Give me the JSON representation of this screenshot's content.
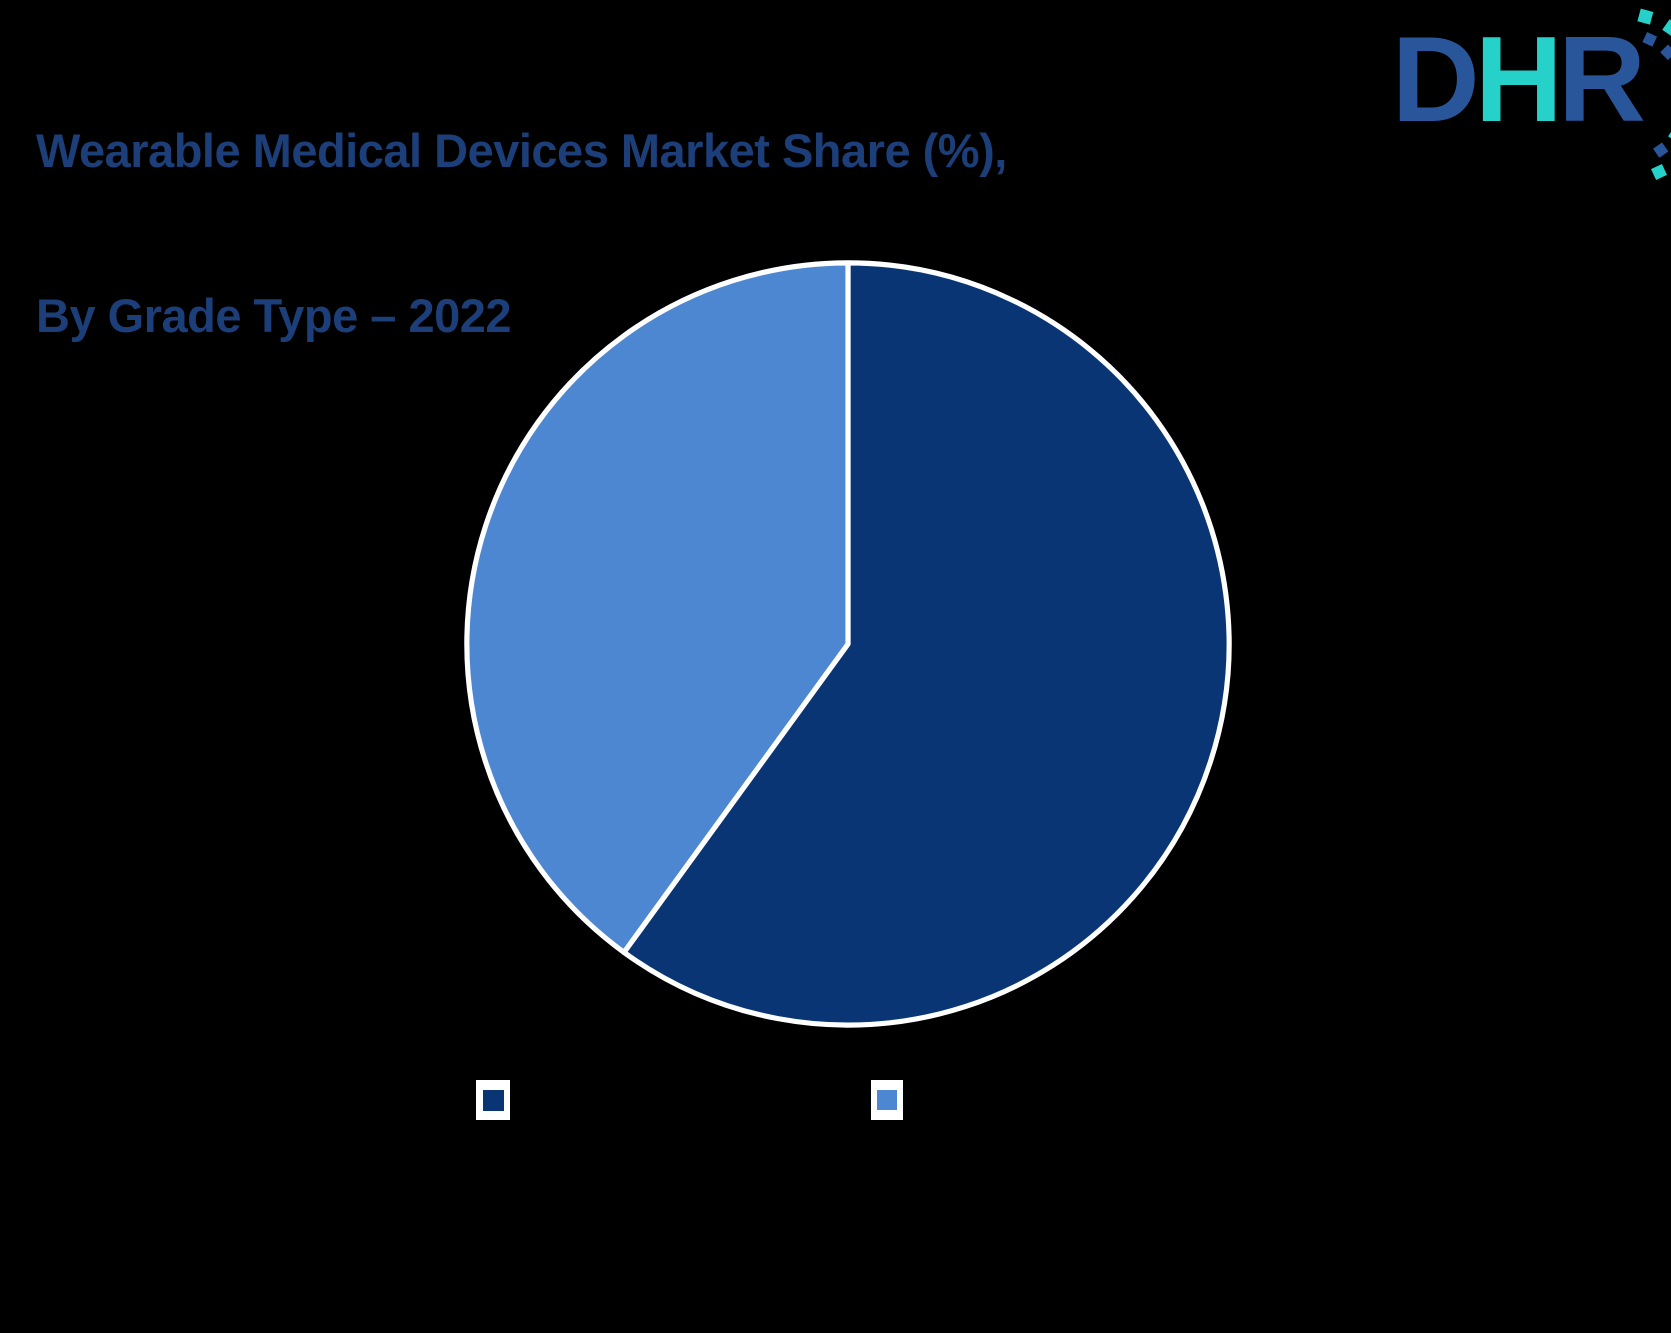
{
  "title": {
    "line1": "Wearable Medical Devices Market Share (%),",
    "line2": "By Grade Type – 2022"
  },
  "logo": {
    "letters": [
      "D",
      "H",
      "R"
    ]
  },
  "colors": {
    "title_navy": "#1c3e79",
    "slice_dark_blue": "#0a3574",
    "slice_light_blue": "#4e87d1",
    "pie_outline_white": "#ffffff",
    "logo_blue": "#29569b",
    "logo_teal": "#26d1c9",
    "background": "#000000"
  },
  "chart_data": {
    "type": "pie",
    "title": "Wearable Medical Devices Market Share (%), By Grade Type – 2022",
    "categories": [
      "",
      ""
    ],
    "values": [
      60,
      40
    ],
    "slice_colors": [
      "#0a3574",
      "#4e87d1"
    ],
    "start_angle_deg_from_top": 0,
    "direction": "clockwise",
    "outline_color": "#ffffff",
    "data_labels_visible": false,
    "legend_position": "bottom",
    "legend_labels_visible": false
  },
  "legend": {
    "items": [
      {
        "label": "",
        "color": "#0a3574"
      },
      {
        "label": "",
        "color": "#4e87d1"
      }
    ]
  }
}
